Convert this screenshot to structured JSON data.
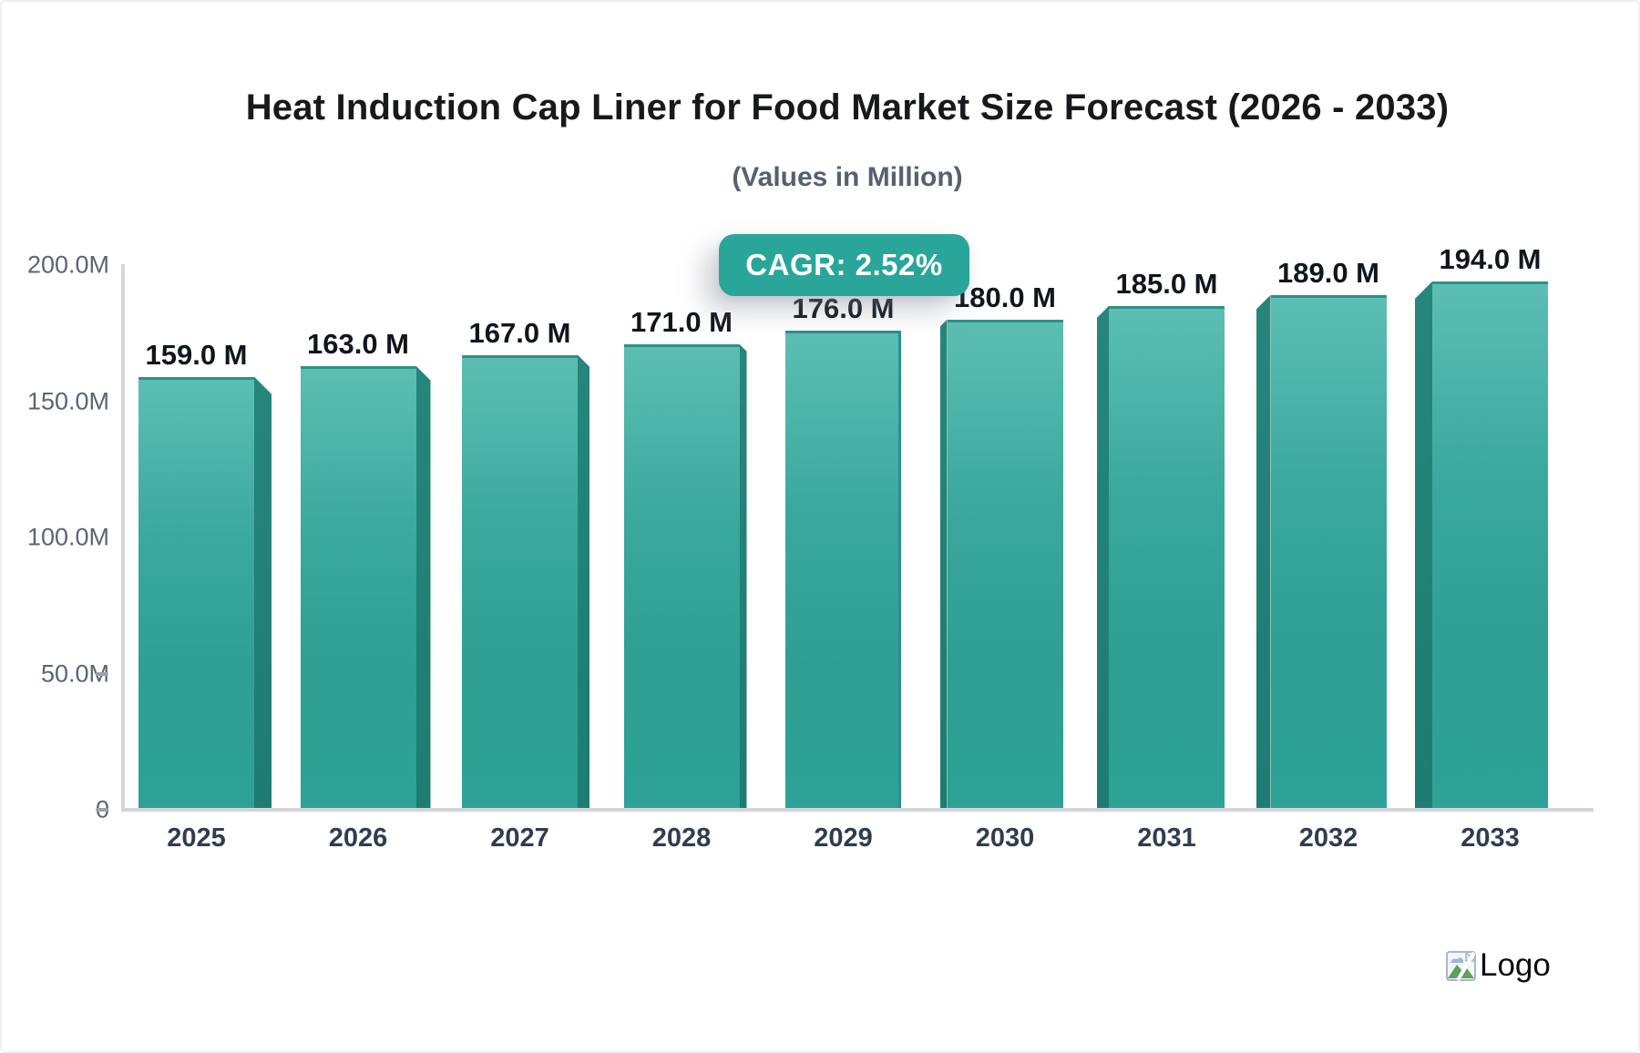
{
  "title": "Heat Induction Cap Liner for Food Market Size Forecast (2026 - 2033)",
  "subtitle": "(Values in Million)",
  "badge": {
    "label": "CAGR: 2.52%"
  },
  "logo": {
    "alt_text": "Logo",
    "icon": "broken-image-icon"
  },
  "chart_data": {
    "type": "bar",
    "title": "Heat Induction Cap Liner for Food Market Size Forecast (2026 - 2033)",
    "subtitle": "(Values in Million)",
    "xlabel": "",
    "ylabel": "",
    "categories": [
      "2025",
      "2026",
      "2027",
      "2028",
      "2029",
      "2030",
      "2031",
      "2032",
      "2033"
    ],
    "values": [
      159,
      163,
      167,
      171,
      176,
      180,
      185,
      189,
      194
    ],
    "bar_labels": [
      "159.0 M",
      "163.0 M",
      "167.0 M",
      "171.0 M",
      "176.0 M",
      "180.0 M",
      "185.0 M",
      "189.0 M",
      "194.0 M"
    ],
    "cagr": "CAGR: 2.52%",
    "ylim": [
      0,
      200
    ],
    "y_ticks": [
      {
        "label": "200.0M",
        "value": 200,
        "dash": false
      },
      {
        "label": "150.0M",
        "value": 150,
        "dash": false
      },
      {
        "label": "100.0M",
        "value": 100,
        "dash": false
      },
      {
        "label": "50.0M",
        "value": 50,
        "dash": true
      },
      {
        "label": "0",
        "value": 0,
        "dash": true
      }
    ],
    "grid": false,
    "legend": false,
    "style": "3d-perspective-bars",
    "colors": {
      "bar_face_top": "#5cbeb3",
      "bar_face": "#2ea296",
      "bar_side": "#1f7e74",
      "bar_edge": "#2c9187",
      "axis_line": "#d2d5da",
      "tick_text": "#5c6573",
      "category_text": "#303c50",
      "value_text": "#10161d",
      "badge_bg": "#2aa59a",
      "badge_text": "#ffffff"
    }
  }
}
